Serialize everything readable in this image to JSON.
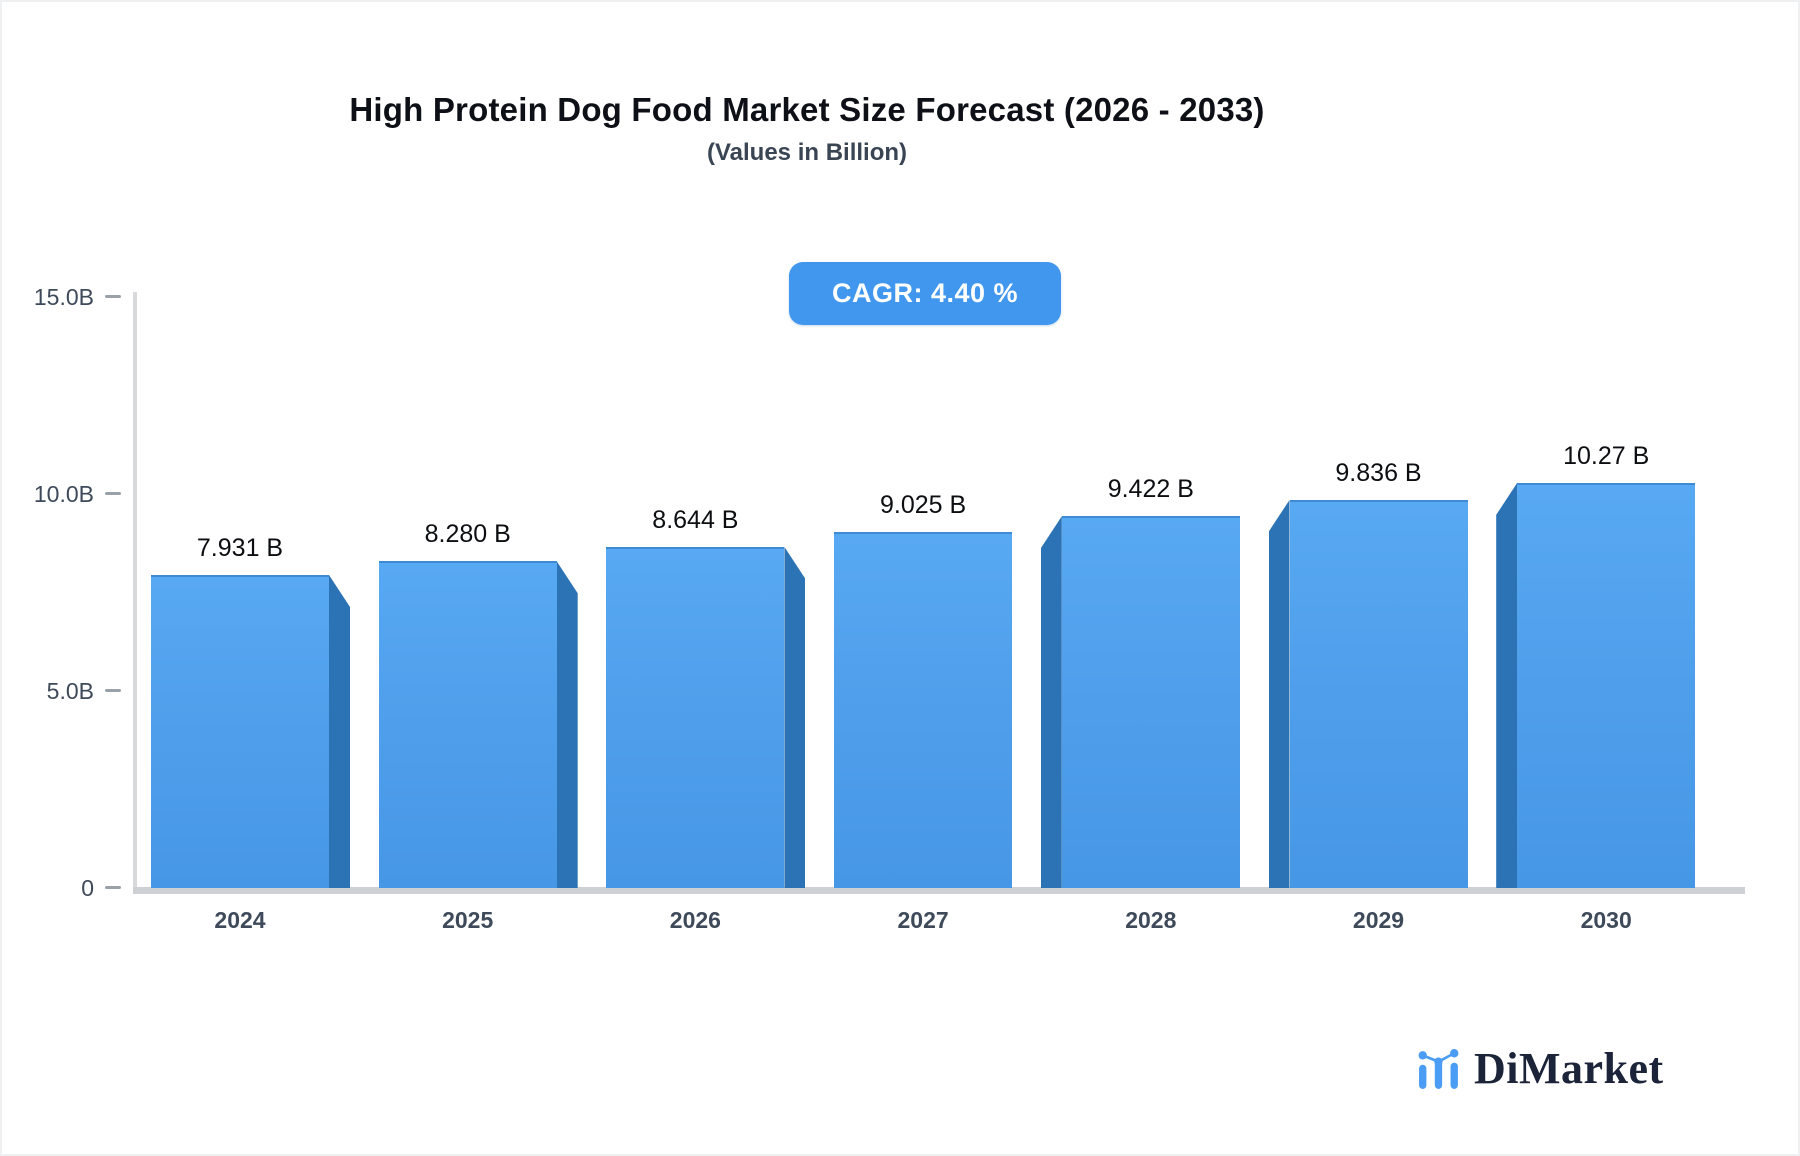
{
  "chart": {
    "title": "High Protein Dog Food Market Size Forecast (2026 - 2033)",
    "subtitle": "(Values in Billion)",
    "cagr_label": "CAGR: 4.40 %"
  },
  "brand": {
    "name": "DiMarket"
  },
  "chart_data": {
    "type": "bar",
    "title": "High Protein Dog Food Market Size Forecast (2026 - 2033)",
    "subtitle": "(Values in Billion)",
    "annotation": "CAGR: 4.40 %",
    "categories": [
      "2024",
      "2025",
      "2026",
      "2027",
      "2028",
      "2029",
      "2030"
    ],
    "values": [
      7.931,
      8.28,
      8.644,
      9.025,
      9.422,
      9.836,
      10.27
    ],
    "value_labels": [
      "7.931 B",
      "8.280 B",
      "8.644 B",
      "9.025 B",
      "9.422 B",
      "9.836 B",
      "10.27 B"
    ],
    "unit": "Billion",
    "ylim": [
      0,
      15
    ],
    "y_ticks": [
      {
        "value": 0,
        "label": "0"
      },
      {
        "value": 5,
        "label": "5.0B"
      },
      {
        "value": 10,
        "label": "10.0B"
      },
      {
        "value": 15,
        "label": "15.0B"
      }
    ],
    "grid": false,
    "legend": false,
    "bar_color": "#52a4ef",
    "bar_side_color": "#2c73b5",
    "accent_color": "#4197ee",
    "axis_color": "#cdd0d5",
    "label_color": "#3e4a5a"
  }
}
